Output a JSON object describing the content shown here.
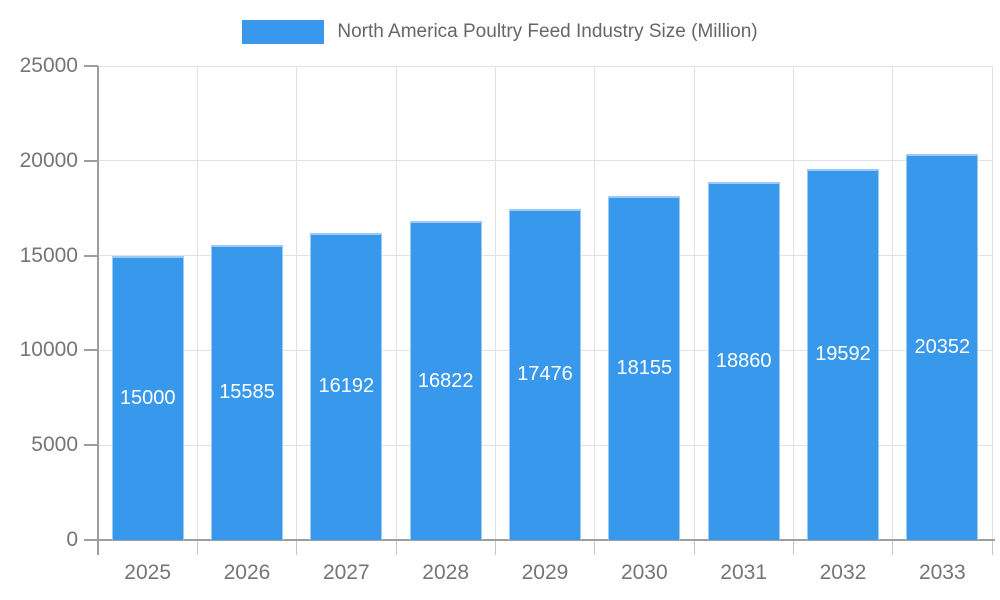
{
  "chart_data": {
    "type": "bar",
    "title": "North America Poultry Feed Industry Size (Million)",
    "legend": {
      "position": "top",
      "entries": [
        {
          "label": "North America Poultry Feed Industry Size (Million)",
          "color": "#3898ec"
        }
      ]
    },
    "categories": [
      "2025",
      "2026",
      "2027",
      "2028",
      "2029",
      "2030",
      "2031",
      "2032",
      "2033"
    ],
    "series": [
      {
        "name": "North America Poultry Feed Industry Size (Million)",
        "values": [
          15000,
          15585,
          16192,
          16822,
          17476,
          18155,
          18860,
          19592,
          20352
        ]
      }
    ],
    "value_labels_shown": true,
    "xlabel": "",
    "ylabel": "",
    "ylim": [
      0,
      25000
    ],
    "ytick_step": 5000,
    "yticks": [
      "0",
      "5000",
      "10000",
      "15000",
      "20000",
      "25000"
    ],
    "grid": true,
    "colors": {
      "bar_fill": "#3898ec",
      "bar_border": "#9ccaf4",
      "value_label": "#ffffff",
      "axis_line": "#9e9e9e",
      "gridline": "#e2e2e2",
      "x_tick": "#c6c6c6",
      "axis_text": "#757575",
      "legend_text": "#666666"
    }
  }
}
